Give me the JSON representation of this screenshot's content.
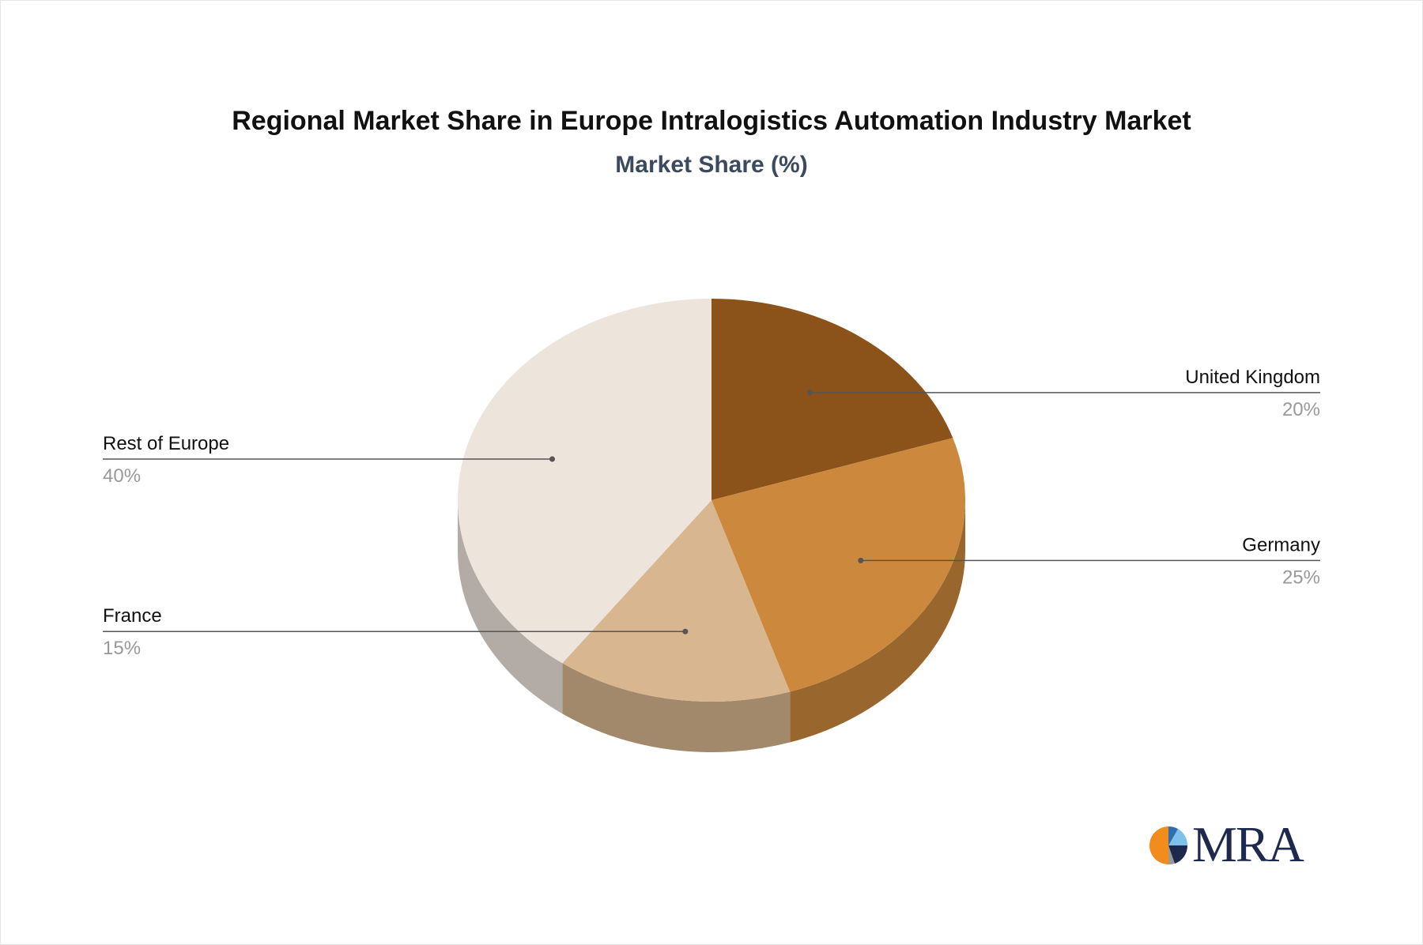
{
  "chart_data": {
    "type": "pie",
    "title": "Regional Market Share in Europe Intralogistics Automation Industry Market",
    "subtitle": "Market Share (%)",
    "slices": [
      {
        "label": "United Kingdom",
        "value": 20,
        "value_label": "20%",
        "color": "#8b5319",
        "side_color": "#6e4214"
      },
      {
        "label": "Germany",
        "value": 25,
        "value_label": "25%",
        "color": "#cc893d",
        "side_color": "#99672e"
      },
      {
        "label": "France",
        "value": 15,
        "value_label": "15%",
        "color": "#d8b690",
        "side_color": "#a2896c"
      },
      {
        "label": "Rest of Europe",
        "value": 40,
        "value_label": "40%",
        "color": "#ede4db",
        "side_color": "#b3aba5"
      }
    ],
    "label_color": "#111111",
    "value_label_color": "#999999",
    "leader_color": "#555555"
  },
  "logo": {
    "text": "MRA"
  }
}
